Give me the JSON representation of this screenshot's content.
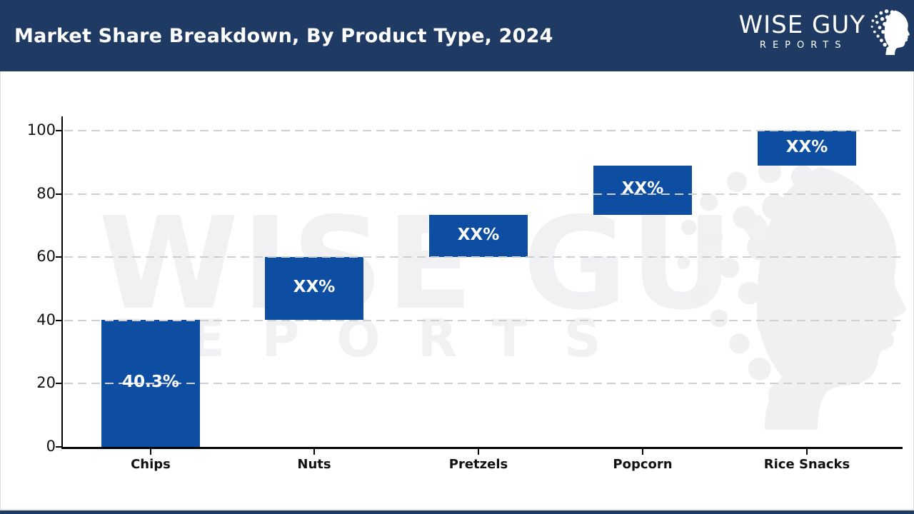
{
  "header": {
    "title": "Market Share Breakdown, By Product Type, 2024",
    "bg_color": "#1f3a63",
    "logo": {
      "line1": "WISE GUY",
      "line2": "REPORTS"
    }
  },
  "watermark": {
    "line1": "WISE GUY",
    "line2": "REPORTS"
  },
  "chart_data": {
    "type": "bar",
    "subtype": "waterfall",
    "title": "Market Share Breakdown, By Product Type, 2024",
    "xlabel": "",
    "ylabel": "",
    "categories": [
      "Chips",
      "Nuts",
      "Pretzels",
      "Popcorn",
      "Rice Snacks"
    ],
    "segments": [
      {
        "category": "Chips",
        "start": 0,
        "end": 40.3,
        "label": "40.3%"
      },
      {
        "category": "Nuts",
        "start": 40.3,
        "end": 60.0,
        "label": "XX%"
      },
      {
        "category": "Pretzels",
        "start": 60.0,
        "end": 73.5,
        "label": "XX%"
      },
      {
        "category": "Popcorn",
        "start": 73.5,
        "end": 89.0,
        "label": "XX%"
      },
      {
        "category": "Rice Snacks",
        "start": 89.0,
        "end": 100.0,
        "label": "XX%"
      }
    ],
    "ylim": [
      0,
      100
    ],
    "yticks": [
      0,
      20,
      40,
      60,
      80,
      100
    ],
    "grid": "horizontal-dashed-over-bars",
    "legend": "none",
    "bar_color": "#0d4da2",
    "bar_label_color": "#ffffff",
    "grid_color": "#cfcfcf",
    "axis_color": "#000000"
  }
}
